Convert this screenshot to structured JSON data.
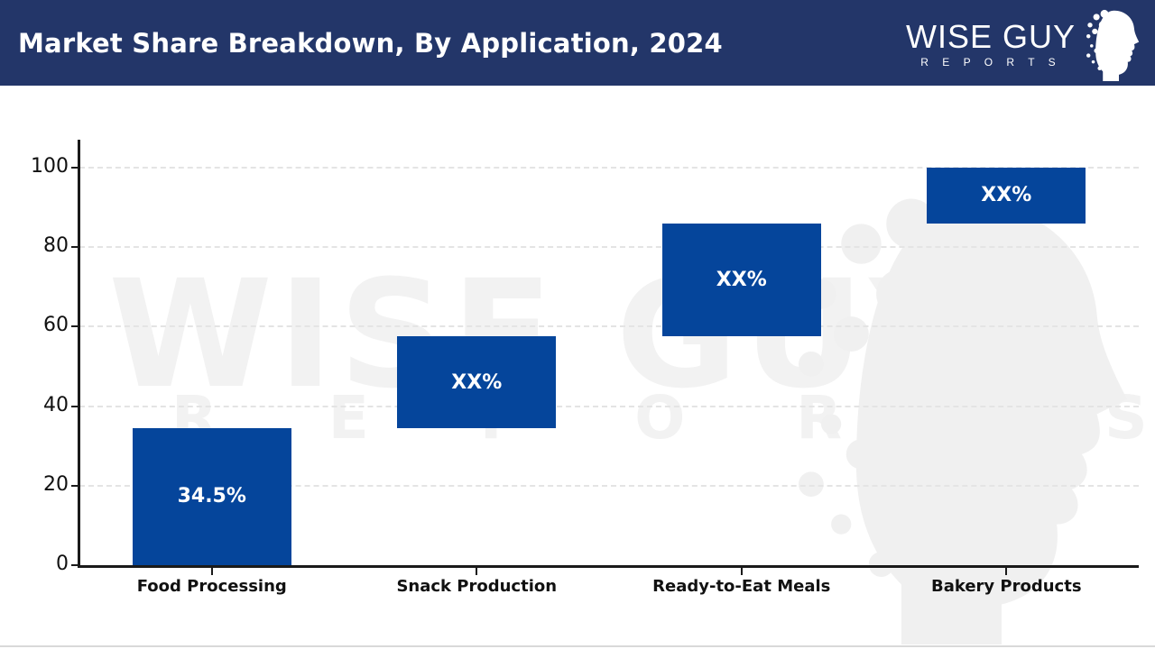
{
  "header": {
    "title": "Market Share Breakdown, By Application, 2024",
    "logo": {
      "name": "WISE GUY",
      "tagline": "R E P O R T S",
      "icon": "dotted-head-profile"
    }
  },
  "watermark": {
    "line1": "WISE GUY",
    "line2": "R E P O R T S",
    "icon": "dotted-head-profile"
  },
  "colors": {
    "header_bg": "#233669",
    "bar_fill": "#05459B",
    "axis": "#1a1a1a",
    "gridline": "#e4e4e4",
    "bar_label_text": "#ffffff",
    "tick_text": "#111111",
    "watermark": "#f2f2f2"
  },
  "chart_data": {
    "type": "bar",
    "subtype": "waterfall",
    "title": "Market Share Breakdown, By Application, 2024",
    "xlabel": "",
    "ylabel": "",
    "legend": "none",
    "grid": "horizontal-dashed",
    "yticks": [
      0,
      20,
      40,
      60,
      80,
      100
    ],
    "ylim": [
      0,
      107
    ],
    "categories": [
      "Food Processing",
      "Snack Production",
      "Ready-to-Eat Meals",
      "Bakery Products"
    ],
    "bars": [
      {
        "category": "Food Processing",
        "start": 0,
        "end": 34.5,
        "value": 34.5,
        "label": "34.5%"
      },
      {
        "category": "Snack Production",
        "start": 34.5,
        "end": 57.5,
        "value": 23,
        "label": "XX%"
      },
      {
        "category": "Ready-to-Eat Meals",
        "start": 57.5,
        "end": 86,
        "value": 28.5,
        "label": "XX%"
      },
      {
        "category": "Bakery Products",
        "start": 86,
        "end": 100,
        "value": 14,
        "label": "XX%"
      }
    ],
    "bar_color": "#05459B"
  }
}
